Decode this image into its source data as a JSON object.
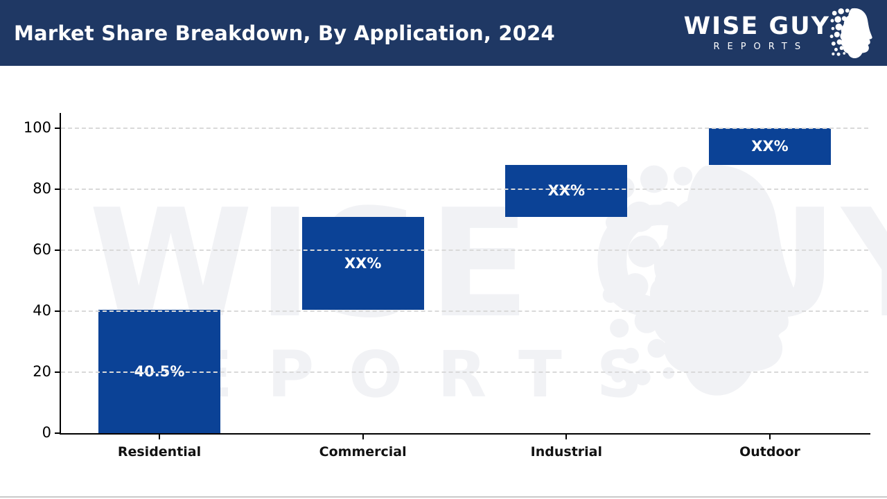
{
  "header": {
    "title": "Market Share Breakdown, By Application, 2024",
    "logo": {
      "line1": "WISE GUY",
      "line2": "REPORTS"
    }
  },
  "watermark": {
    "line1": "WISE GUY",
    "line2": "REPORTS"
  },
  "colors": {
    "header_bg": "#1F3864",
    "bar": "#0B4296",
    "grid": "#D9D9D9",
    "watermark": "#F1F2F5",
    "axis": "#000000"
  },
  "chart_data": {
    "type": "bar",
    "subtype": "waterfall",
    "title": "Market Share Breakdown, By Application, 2024",
    "xlabel": "",
    "ylabel": "",
    "categories": [
      "Residential",
      "Commercial",
      "Industrial",
      "Outdoor"
    ],
    "segments": [
      {
        "category": "Residential",
        "start": 0,
        "end": 40.5,
        "value_label": "40.5%"
      },
      {
        "category": "Commercial",
        "start": 40.5,
        "end": 71,
        "value_label": "XX%"
      },
      {
        "category": "Industrial",
        "start": 71,
        "end": 88,
        "value_label": "XX%"
      },
      {
        "category": "Outdoor",
        "start": 88,
        "end": 100,
        "value_label": "XX%"
      }
    ],
    "yticks": [
      0,
      20,
      40,
      60,
      80,
      100
    ],
    "ylim": [
      0,
      104.5
    ],
    "grid": "horizontal-dashed",
    "legend": "none"
  }
}
